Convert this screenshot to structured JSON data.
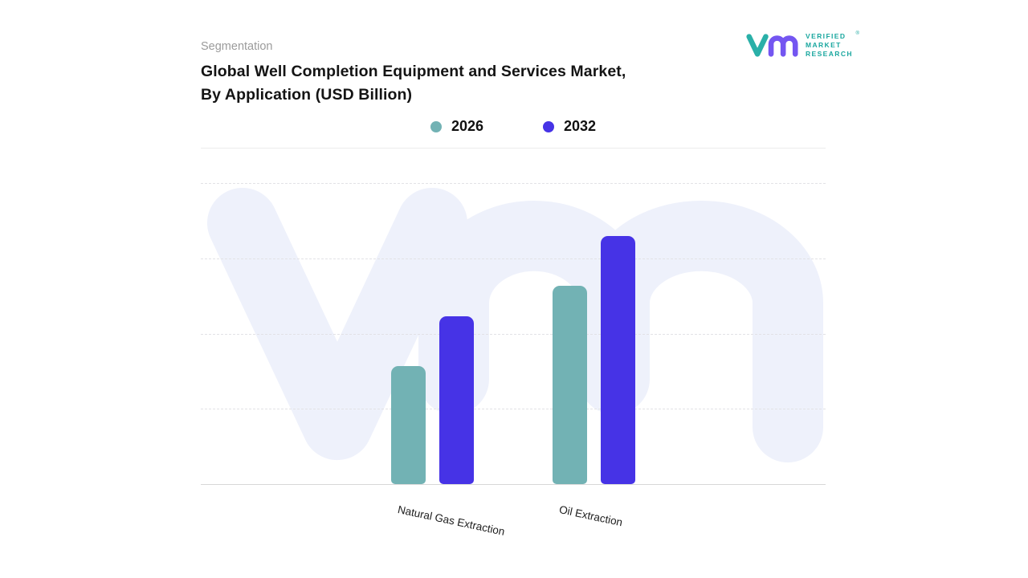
{
  "branding": {
    "eyebrow": "Segmentation",
    "logo_lines": [
      "VERIFIED",
      "MARKET",
      "RESEARCH"
    ],
    "registered_mark": "®",
    "logo_teal": "#2ab0a8",
    "logo_purple": "#7456f1"
  },
  "header": {
    "title_line1": "Global Well Completion Equipment and Services Market,",
    "title_line2": "By Application (USD Billion)"
  },
  "watermark": {
    "text": "Vm",
    "color": "#eef1fb"
  },
  "chart_data": {
    "type": "bar",
    "title": "Global Well Completion Equipment and Services Market, By Application (USD Billion)",
    "units": "USD Billion",
    "categories": [
      "Natural Gas Extraction",
      "Oil Extraction"
    ],
    "series": [
      {
        "name": "2026",
        "color": "#72b2b4",
        "values": [
          4.7,
          7.9
        ]
      },
      {
        "name": "2032",
        "color": "#4633e6",
        "values": [
          6.7,
          9.9
        ]
      }
    ],
    "ylim": [
      0,
      12
    ],
    "xlabel": "",
    "ylabel": "",
    "grid": "horizontal-dashed",
    "legend_position": "top-center",
    "axis_tick_labels_shown": false,
    "value_labels_shown": false,
    "values_estimated_from_bar_heights": true
  }
}
